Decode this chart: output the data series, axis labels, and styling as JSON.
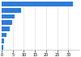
{
  "values": [
    3200000,
    870000,
    600000,
    490000,
    360000,
    210000,
    120000,
    70000
  ],
  "bar_color": "#2e7cd6",
  "background_color": "#ffffff",
  "grid_color": "#d9d9d9",
  "xlim": [
    0,
    3500000
  ],
  "bar_height": 0.75,
  "tick_fontsize": 3.5,
  "xtick_vals": [
    0,
    500000,
    1000000,
    1500000,
    2000000,
    2500000,
    3000000
  ],
  "xtick_labels": [
    "0",
    "5",
    "10",
    "15",
    "20",
    "25",
    "30"
  ]
}
